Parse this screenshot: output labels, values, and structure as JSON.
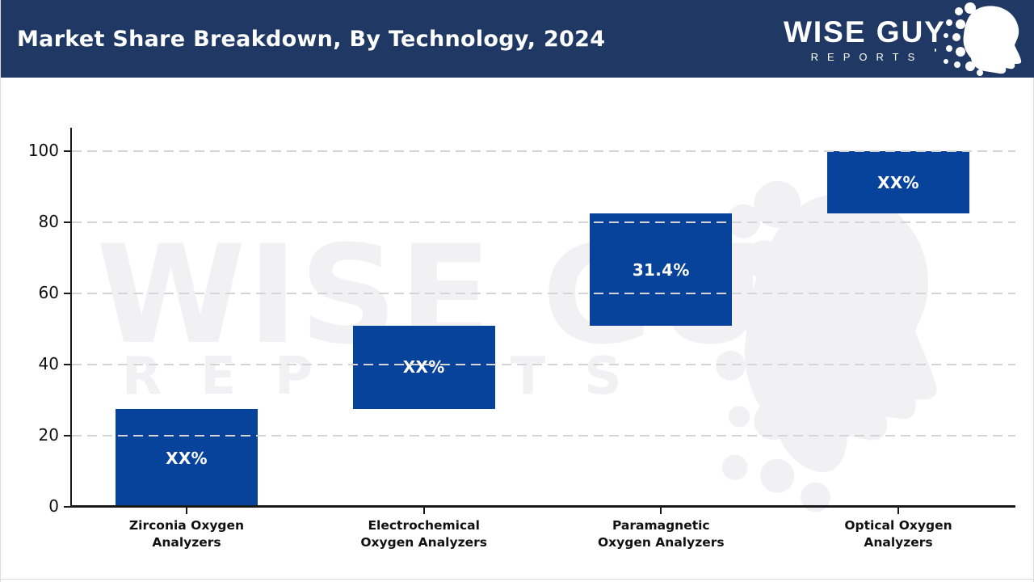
{
  "header": {
    "title": "Market Share Breakdown, By Technology, 2024",
    "logo": {
      "line1": "WISE GUY",
      "line2": "REPORTS"
    }
  },
  "watermark": {
    "line1": "WISE GUY",
    "line2": "REPORTS"
  },
  "chart_data": {
    "type": "bar",
    "variant": "floating-waterfall",
    "title": "Market Share Breakdown, By Technology, 2024",
    "categories": [
      "Zirconia Oxygen Analyzers",
      "Electrochemical Oxygen Analyzers",
      "Paramagnetic Oxygen Analyzers",
      "Optical Oxygen Analyzers"
    ],
    "categories_wrapped": [
      [
        "Zirconia Oxygen",
        "Analyzers"
      ],
      [
        "Electrochemical",
        "Oxygen Analyzers"
      ],
      [
        "Paramagnetic",
        "Oxygen Analyzers"
      ],
      [
        "Optical Oxygen",
        "Analyzers"
      ]
    ],
    "series": [
      {
        "name": "Market Share 2024",
        "segments": [
          {
            "category": "Zirconia Oxygen Analyzers",
            "start": 0,
            "end": 27.5,
            "label": "XX%"
          },
          {
            "category": "Electrochemical Oxygen Analyzers",
            "start": 27.5,
            "end": 51.0,
            "label": "XX%"
          },
          {
            "category": "Paramagnetic Oxygen Analyzers",
            "start": 51.0,
            "end": 82.4,
            "label": "31.4%"
          },
          {
            "category": "Optical Oxygen Analyzers",
            "start": 82.4,
            "end": 100.0,
            "label": "XX%"
          }
        ]
      }
    ],
    "xlabel": "",
    "ylabel": "",
    "ylim": [
      0,
      106
    ],
    "yticks": [
      0,
      20,
      40,
      60,
      80,
      100
    ],
    "grid": "horizontal dashed, drawn above bars",
    "legend": "none",
    "colors": {
      "bar": "#08439b",
      "value_label": "#ffffff",
      "header_bg": "#1f3864",
      "gridline": "#d5d5d5",
      "axis": "#1a1a1a",
      "watermark": "#f1f1f4"
    }
  }
}
